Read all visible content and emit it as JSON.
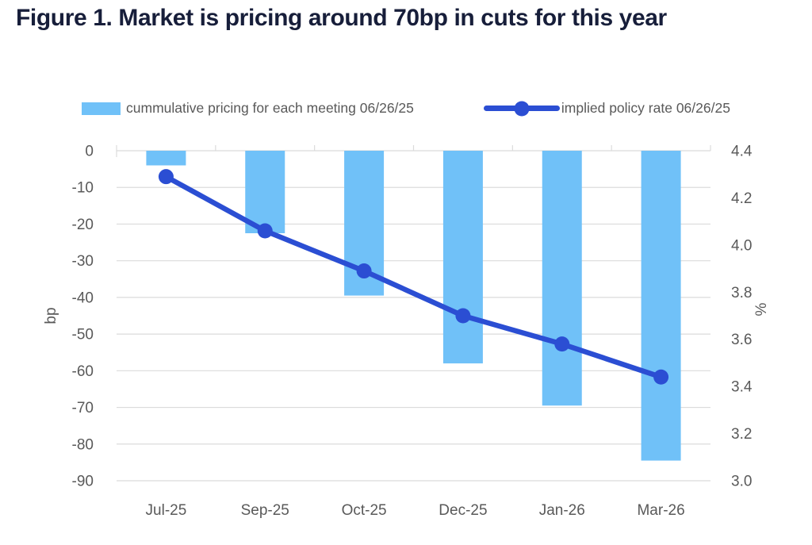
{
  "title": "Figure 1. Market is pricing around 70bp in cuts for this year",
  "legend": {
    "bars_label": "cummulative pricing for each meeting  06/26/25",
    "line_label": "implied policy rate 06/26/25"
  },
  "chart_data": {
    "type": "bar",
    "subtype": "combo-bar-line-dual-axis",
    "title": "Figure 1. Market is pricing around 70bp in cuts for this year",
    "categories": [
      "Jul-25",
      "Sep-25",
      "Oct-25",
      "Dec-25",
      "Jan-26",
      "Mar-26"
    ],
    "series": [
      {
        "name": "cummulative pricing for each meeting  06/26/25",
        "type": "bar",
        "axis": "left",
        "unit": "bp",
        "values": [
          -4,
          -22.5,
          -39.5,
          -58,
          -69.5,
          -84.5
        ]
      },
      {
        "name": "implied policy rate 06/26/25",
        "type": "line",
        "axis": "right",
        "unit": "%",
        "values": [
          4.29,
          4.06,
          3.89,
          3.7,
          3.58,
          3.44
        ]
      }
    ],
    "left_axis": {
      "label": "bp",
      "min": -90,
      "max": 0,
      "tick_labels": [
        "0",
        "-10",
        "-20",
        "-30",
        "-40",
        "-50",
        "-60",
        "-70",
        "-80",
        "-90"
      ]
    },
    "right_axis": {
      "label": "%",
      "min": 3.0,
      "max": 4.4,
      "tick_labels": [
        "4.4",
        "4.2",
        "4.0",
        "3.8",
        "3.6",
        "3.4",
        "3.2",
        "3.0"
      ]
    },
    "grid": "horizontal",
    "legend_position": "top",
    "colors": {
      "bar": "#70C1F8",
      "line": "#2B4ED3",
      "grid": "#DBDBDB",
      "axis_text": "#595959",
      "title_text": "#171E3A",
      "background": "#FFFFFF"
    }
  }
}
